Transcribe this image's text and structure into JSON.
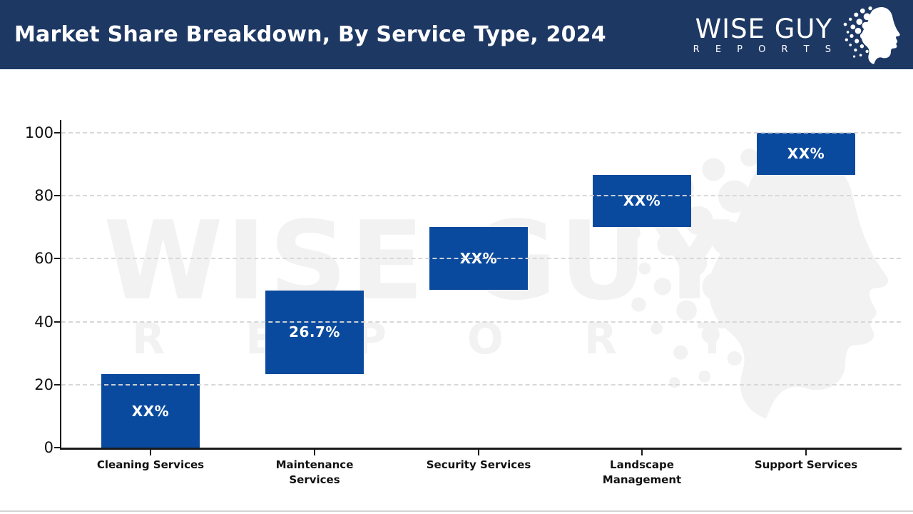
{
  "header": {
    "title": "Market Share Breakdown, By Service Type, 2024",
    "logo": {
      "primary": "WISE GUY",
      "secondary": "R E P O R T S"
    }
  },
  "watermark": {
    "primary": "WISE GUY",
    "secondary": "R E P O R T S"
  },
  "colors": {
    "header_bg": "#1E3864",
    "bar": "#0A4A9E",
    "gridline": "#D9D9D9",
    "axis": "#1A1A1A",
    "title_text": "#FFFFFF",
    "watermark": "#F2F2F3"
  },
  "chart_data": {
    "type": "bar",
    "subtype": "waterfall",
    "title": "Market Share Breakdown, By Service Type, 2024",
    "categories": [
      "Cleaning Services",
      "Maintenance\nServices",
      "Security Services",
      "Landscape\nManagement",
      "Support Services"
    ],
    "segments": [
      {
        "category": "Cleaning Services",
        "start": 0,
        "end": 23.3,
        "value": 23.3,
        "label": "XX%"
      },
      {
        "category": "Maintenance Services",
        "start": 23.3,
        "end": 50,
        "value": 26.7,
        "label": "26.7%"
      },
      {
        "category": "Security Services",
        "start": 50,
        "end": 70,
        "value": 20.0,
        "label": "XX%"
      },
      {
        "category": "Landscape Management",
        "start": 70,
        "end": 86.7,
        "value": 16.7,
        "label": "XX%"
      },
      {
        "category": "Support Services",
        "start": 86.7,
        "end": 100,
        "value": 13.3,
        "label": "XX%"
      }
    ],
    "ylim": [
      0,
      100
    ],
    "yticks": [
      0,
      20,
      40,
      60,
      80,
      100
    ],
    "xlabel": "",
    "ylabel": "",
    "grid": "horizontal-dashed",
    "legend": "none"
  }
}
